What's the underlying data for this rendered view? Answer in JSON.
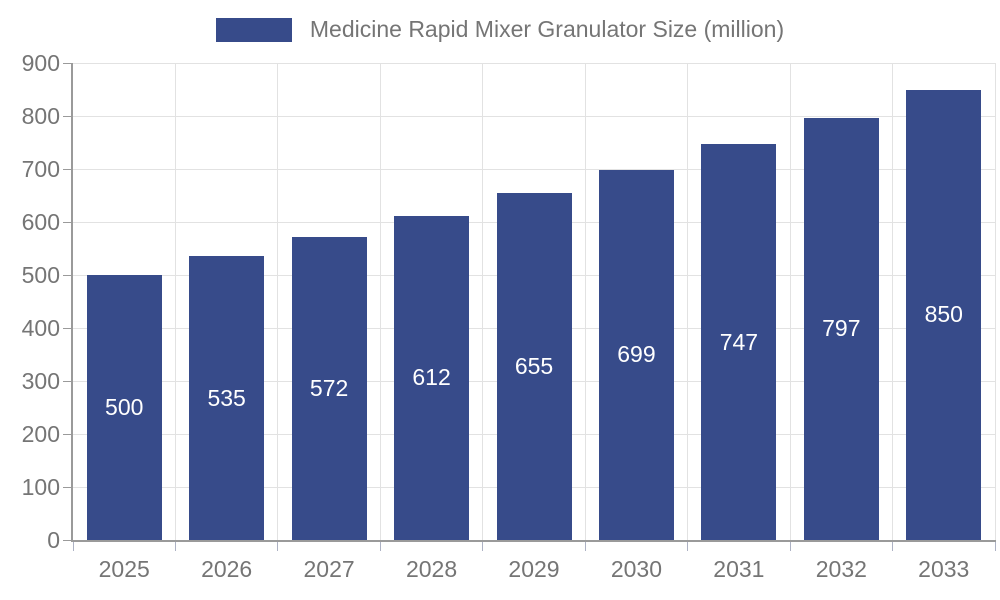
{
  "chart_data": {
    "type": "bar",
    "title": "Medicine Rapid Mixer Granulator Size (million)",
    "categories": [
      "2025",
      "2026",
      "2027",
      "2028",
      "2029",
      "2030",
      "2031",
      "2032",
      "2033"
    ],
    "values": [
      500,
      535,
      572,
      612,
      655,
      699,
      747,
      797,
      850
    ],
    "xlabel": "",
    "ylabel": "",
    "ylim": [
      0,
      900
    ],
    "ytick_step": 100,
    "yticks": [
      0,
      100,
      200,
      300,
      400,
      500,
      600,
      700,
      800,
      900
    ],
    "grid": true,
    "legend_position": "top",
    "value_labels": "inside-center-white",
    "colors": {
      "bar": "#374B8A",
      "value_label": "#FFFFFF",
      "axis_text": "#757575",
      "axis_line": "#9A9A9A",
      "grid_line": "#E2E2E2",
      "background": "#FFFFFF"
    }
  }
}
